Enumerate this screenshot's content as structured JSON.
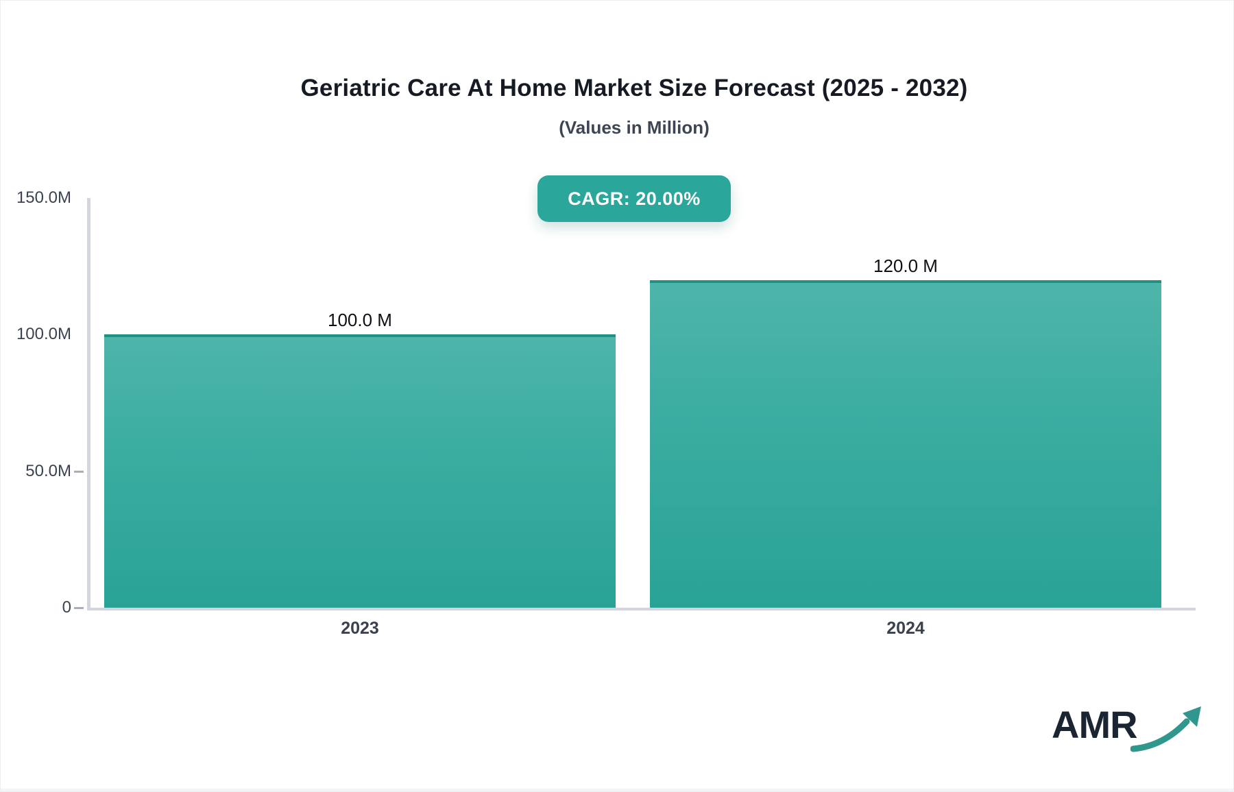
{
  "title": "Geriatric Care At Home Market Size Forecast (2025 - 2032)",
  "subtitle": "(Values in Million)",
  "cagr_badge": "CAGR: 20.00%",
  "logo": {
    "text": "AMR"
  },
  "colors": {
    "bar_gradient_top": "#4eb5aa",
    "bar_gradient_bottom": "#29a396",
    "bar_top_border": "#1f9183",
    "badge_bg": "#2aa69b",
    "axis_line": "#d3d7dd",
    "tick_text": "#3b4250",
    "title_text": "#151a23",
    "logo_text": "#1b2531",
    "logo_arrow": "#2f978e"
  },
  "chart_data": {
    "type": "bar",
    "categories": [
      "2023",
      "2024"
    ],
    "values": [
      100.0,
      120.0
    ],
    "bar_labels": [
      "100.0 M",
      "120.0 M"
    ],
    "title": "Geriatric Care At Home Market Size Forecast (2025 - 2032)",
    "subtitle": "(Values in Million)",
    "xlabel": "",
    "ylabel": "",
    "ylim": [
      0,
      150
    ],
    "y_ticks": [
      {
        "value": 150,
        "label": "150.0M"
      },
      {
        "value": 100,
        "label": "100.0M"
      },
      {
        "value": 50,
        "label": "50.0M"
      },
      {
        "value": 0,
        "label": "0"
      }
    ],
    "tick_marks_at": [
      50,
      0
    ],
    "grid": false,
    "legend": false,
    "annotations": [
      "CAGR: 20.00%"
    ]
  }
}
